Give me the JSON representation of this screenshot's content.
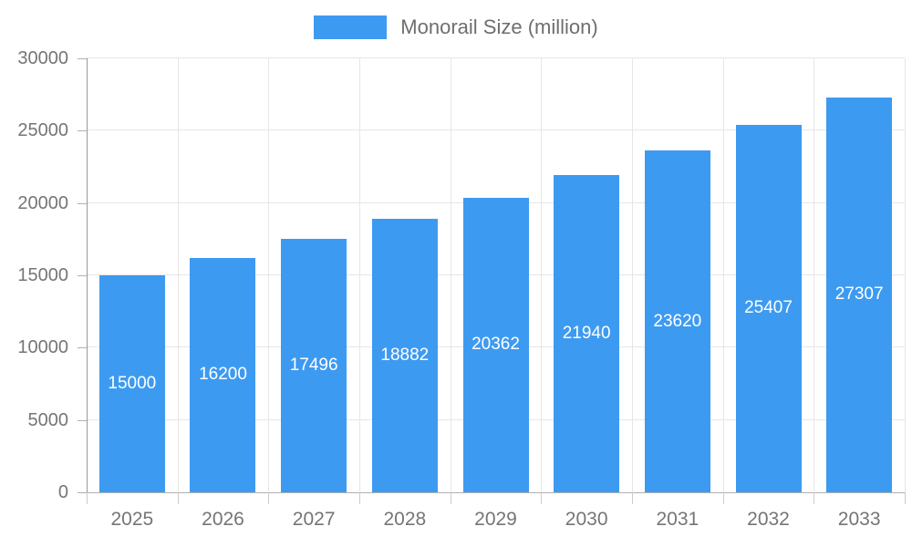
{
  "chart": {
    "bar_color": "#3d9af1",
    "grid_color": "#e6e6e6",
    "axis_text_color": "#757575",
    "legend_text_color": "#6e6e6e",
    "value_label_color": "#ffffff"
  },
  "chart_data": {
    "type": "bar",
    "title": "",
    "legend": "Monorail Size (million)",
    "legend_position": "top-center",
    "categories": [
      "2025",
      "2026",
      "2027",
      "2028",
      "2029",
      "2030",
      "2031",
      "2032",
      "2033"
    ],
    "series": [
      {
        "name": "Monorail Size (million)",
        "values": [
          15000,
          16200,
          17496,
          18882,
          20362,
          21940,
          23620,
          25407,
          27307
        ],
        "labels": [
          "15000",
          "16200",
          "17496",
          "18882",
          "20362",
          "21940",
          "23620",
          "25407",
          "27307"
        ]
      }
    ],
    "xlabel": "",
    "ylabel": "",
    "ylim": [
      0,
      30000
    ],
    "yticks": [
      0,
      5000,
      10000,
      15000,
      20000,
      25000,
      30000
    ],
    "grid": true
  }
}
